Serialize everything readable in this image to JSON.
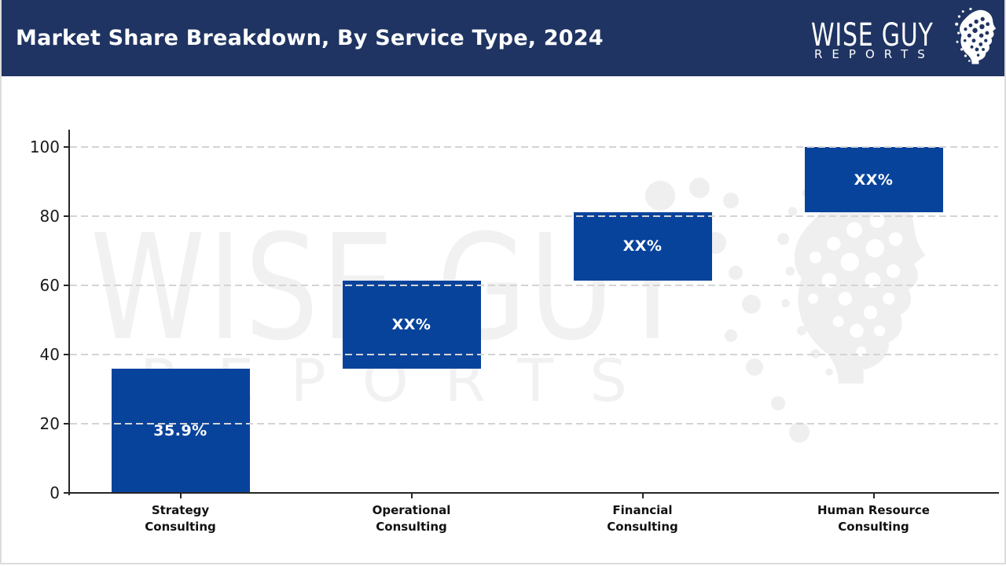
{
  "header": {
    "title": "Market Share Breakdown, By Service Type, 2024",
    "logo": {
      "name": "WISE GUY",
      "sub": "REPORTS"
    }
  },
  "watermark": {
    "name": "WISE GUY",
    "sub": "REPORTS"
  },
  "chart_data": {
    "type": "bar",
    "subtype": "waterfall",
    "title": "Market Share Breakdown, By Service Type, 2024",
    "ylim": [
      0,
      100
    ],
    "yticks": [
      0,
      20,
      40,
      60,
      80,
      100
    ],
    "grid": {
      "axis": "y",
      "style": "dashed",
      "color": "#d4d4d4"
    },
    "bar_color": "#08439b",
    "bar_label_color": "#ffffff",
    "categories": [
      [
        "Strategy",
        "Consulting"
      ],
      [
        "Operational",
        "Consulting"
      ],
      [
        "Financial",
        "Consulting"
      ],
      [
        "Human Resource",
        "Consulting"
      ]
    ],
    "bars": [
      {
        "category": "Strategy Consulting",
        "start": 0,
        "end": 35.9,
        "label": "35.9%"
      },
      {
        "category": "Operational Consulting",
        "start": 35.9,
        "end": 61.4,
        "label": "XX%"
      },
      {
        "category": "Financial Consulting",
        "start": 61.4,
        "end": 81.1,
        "label": "XX%"
      },
      {
        "category": "Human Resource Consulting",
        "start": 81.1,
        "end": 100,
        "label": "XX%"
      }
    ]
  }
}
